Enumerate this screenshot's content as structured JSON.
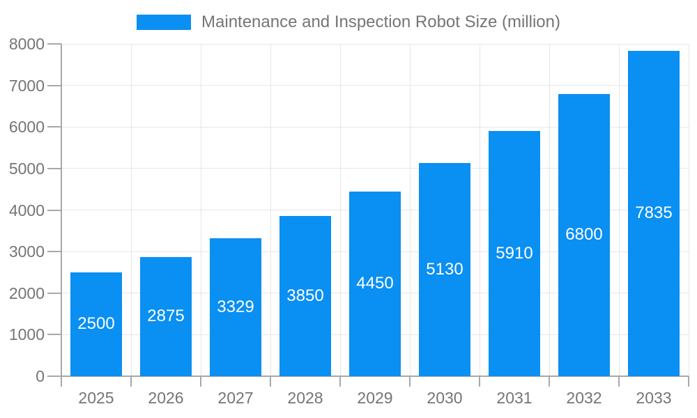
{
  "legend": {
    "label": "Maintenance and Inspection Robot Size (million)"
  },
  "colors": {
    "bar": "#0a8ff2",
    "axis": "#a8a8a8",
    "grid": "#e6e6e6",
    "text": "#757575",
    "value_label": "#ffffff",
    "background": "#ffffff"
  },
  "chart_data": {
    "type": "bar",
    "title": "Maintenance and Inspection Robot Size (million)",
    "categories": [
      "2025",
      "2026",
      "2027",
      "2028",
      "2029",
      "2030",
      "2031",
      "2032",
      "2033"
    ],
    "values": [
      2500,
      2875,
      3329,
      3850,
      4450,
      5130,
      5910,
      6800,
      7835
    ],
    "series": [
      {
        "name": "Maintenance and Inspection Robot Size (million)",
        "values": [
          2500,
          2875,
          3329,
          3850,
          4450,
          5130,
          5910,
          6800,
          7835
        ]
      }
    ],
    "xlabel": "",
    "ylabel": "",
    "ylim": [
      0,
      8000
    ],
    "yticks": [
      0,
      1000,
      2000,
      3000,
      4000,
      5000,
      6000,
      7000,
      8000
    ],
    "grid": true,
    "legend_position": "top",
    "value_label_position": "inside-center",
    "bar_color": "#0a8ff2"
  }
}
